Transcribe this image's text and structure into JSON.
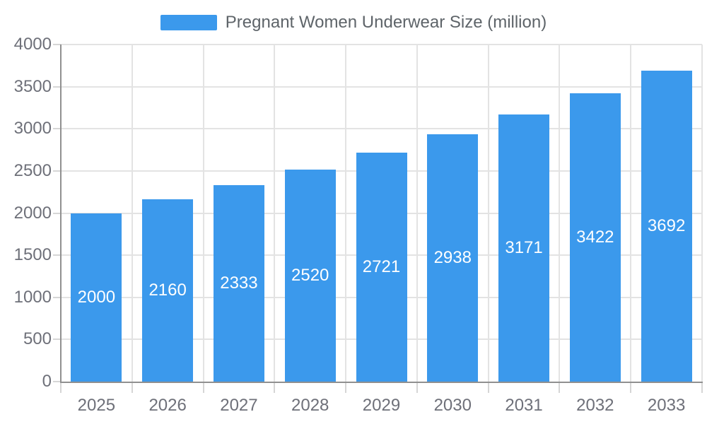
{
  "legend": {
    "label": "Pregnant Women Underwear Size (million)"
  },
  "chart_data": {
    "type": "bar",
    "title": "Pregnant Women Underwear Size (million)",
    "series_name": "Pregnant Women Underwear Size (million)",
    "categories": [
      "2025",
      "2026",
      "2027",
      "2028",
      "2029",
      "2030",
      "2031",
      "2032",
      "2033"
    ],
    "values": [
      2000,
      2160,
      2333,
      2520,
      2721,
      2938,
      3171,
      3422,
      3692
    ],
    "xlabel": "",
    "ylabel": "",
    "ylim": [
      0,
      4000
    ],
    "ytick_step": 500,
    "yticks": [
      0,
      500,
      1000,
      1500,
      2000,
      2500,
      3000,
      3500,
      4000
    ],
    "grid": true,
    "legend_position": "top-center",
    "bar_label_position": "inside-center",
    "colors": {
      "bar": "#3B99EC",
      "bar_label_text": "#FFFFFF",
      "axis_line": "#909090",
      "tick_line": "#D6D6D6",
      "grid_line": "#E3E3E3",
      "axis_label_text": "#6E7079",
      "legend_text": "#5E6469",
      "background": "#FFFFFF"
    }
  }
}
